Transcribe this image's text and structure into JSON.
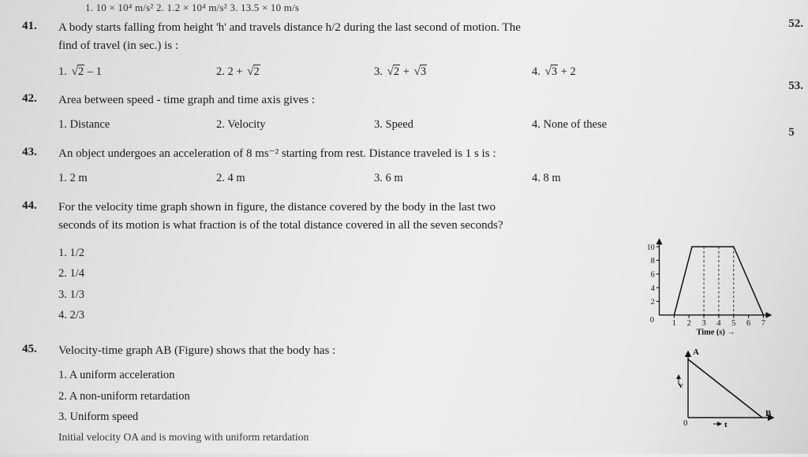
{
  "partial_top": "1. 10 × 10⁴ m/s²      2. 1.2 × 10⁴ m/s²      3. 13.5 × 10  m/s",
  "right_nums": [
    "52.",
    "53.",
    "5"
  ],
  "q41": {
    "num": "41.",
    "stem1": "A body starts falling from height 'h' and travels distance h/2 during the last second of motion. The",
    "stem2": "find of travel (in sec.) is :",
    "o1a": "1. ",
    "o1b": "2",
    "o1c": " – 1",
    "o2a": "2. 2 + ",
    "o2b": "2",
    "o3a": "3. ",
    "o3b": "2",
    "o3c": " + ",
    "o3d": "3",
    "o4a": "4. ",
    "o4b": "3",
    "o4c": " + 2"
  },
  "q42": {
    "num": "42.",
    "stem": "Area between speed - time graph and time axis gives :",
    "o1": "1. Distance",
    "o2": "2. Velocity",
    "o3": "3. Speed",
    "o4": "4. None of these"
  },
  "q43": {
    "num": "43.",
    "stem": "An object undergoes an acceleration of 8 ms⁻² starting from rest. Distance traveled is 1 s is :",
    "o1": "1. 2 m",
    "o2": "2. 4 m",
    "o3": "3. 6 m",
    "o4": "4. 8 m"
  },
  "q44": {
    "num": "44.",
    "stem1": "For the velocity time graph shown in figure, the distance covered by the body in the last two",
    "stem2": "seconds of its motion is what fraction is of the total distance covered in all the seven seconds?",
    "o1": "1. 1/2",
    "o2": "2. 1/4",
    "o3": "3. 1/3",
    "o4": "4. 2/3",
    "graph": {
      "x_ticks": [
        1,
        2,
        3,
        4,
        5,
        6,
        7
      ],
      "y_ticks": [
        2,
        4,
        6,
        8,
        10
      ],
      "poly": [
        [
          1,
          0
        ],
        [
          2.2,
          10
        ],
        [
          5,
          10
        ],
        [
          7,
          0
        ]
      ],
      "dashes_x": [
        3,
        4,
        5
      ],
      "xlabel": "Time (s) →"
    }
  },
  "q45": {
    "num": "45.",
    "stem": "Velocity-time graph AB (Figure) shows that the body has :",
    "o1": "1. A uniform acceleration",
    "o2": "2. A non-uniform retardation",
    "o3": "3. Uniform speed",
    "partial": "Initial velocity OA and is moving with uniform retardation",
    "graph": {
      "A": "A",
      "B": "B",
      "v": "v",
      "t": "t",
      "O": "0"
    }
  }
}
